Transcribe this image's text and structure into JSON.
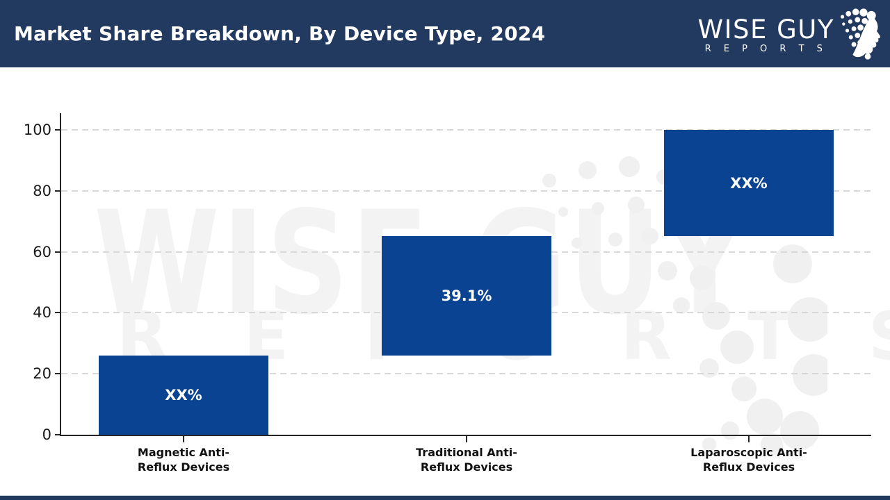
{
  "header": {
    "title": "Market Share Breakdown, By Device Type, 2024",
    "bg_color": "#223960",
    "logo": {
      "wordmark": "WISE GUY",
      "wordmark_sub": "R E P O R T S"
    }
  },
  "watermark": {
    "line1": "WISE GUY",
    "line2": "R E P O R T S"
  },
  "chart_data": {
    "type": "bar",
    "variant": "floating-segment-waterfall",
    "title": "Market Share Breakdown, By Device Type, 2024",
    "categories": [
      "Magnetic Anti-Reflux Devices",
      "Traditional Anti-Reflux Devices",
      "Laparoscopic Anti-Reflux Devices"
    ],
    "category_label_lines": [
      [
        "Magnetic Anti-",
        "Reflux Devices"
      ],
      [
        "Traditional Anti-",
        "Reflux Devices"
      ],
      [
        "Laparoscopic Anti-",
        "Reflux Devices"
      ]
    ],
    "bars": [
      {
        "category": "Magnetic Anti-Reflux Devices",
        "start": 0,
        "end": 26,
        "label": "XX%"
      },
      {
        "category": "Traditional Anti-Reflux Devices",
        "start": 26,
        "end": 65.1,
        "label": "39.1%"
      },
      {
        "category": "Laparoscopic Anti-Reflux Devices",
        "start": 65.1,
        "end": 100,
        "label": "XX%"
      }
    ],
    "xlabel": "",
    "ylabel": "",
    "ylim": [
      0,
      100
    ],
    "yticks": [
      0,
      20,
      40,
      60,
      80,
      100
    ],
    "grid": "horizontal-dashed",
    "legend": "none",
    "colors": {
      "bar": "#0a4392",
      "bar_label": "#ffffff",
      "grid": "#d8d8d8",
      "axis": "#262626",
      "tick_text": "#1a1a1a",
      "header_bg": "#223960",
      "watermark": "#f3f3f3"
    }
  }
}
